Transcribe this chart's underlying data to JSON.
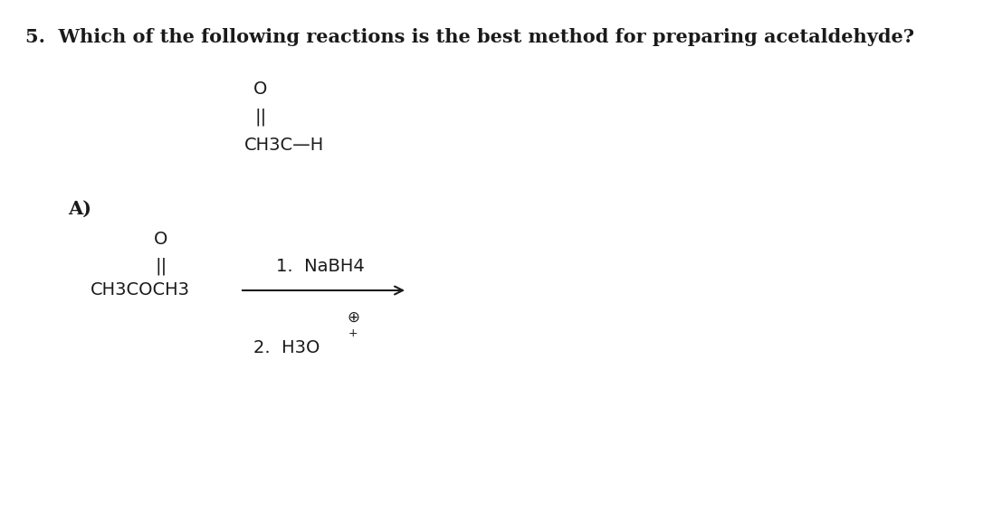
{
  "title": "5.  Which of the following reactions is the best method for preparing acetaldehyde?",
  "title_fontsize": 15,
  "title_font": "DejaVu Serif",
  "bg_color": "#ffffff",
  "text_color": "#1a1a1a",
  "mono_font": "Courier New",
  "answer_label": "A)",
  "product_O": "O",
  "product_double_bond": "||",
  "product_formula": "CH3C—H",
  "reactant_O": "O",
  "reactant_double_bond": "||",
  "reactant_formula": "CH3COCH3",
  "reagent1": "1.  NaBH4",
  "reagent2": "2.  H3O",
  "plus_symbol": "⊕",
  "figsize": [
    10.86,
    5.66
  ],
  "dpi": 100
}
